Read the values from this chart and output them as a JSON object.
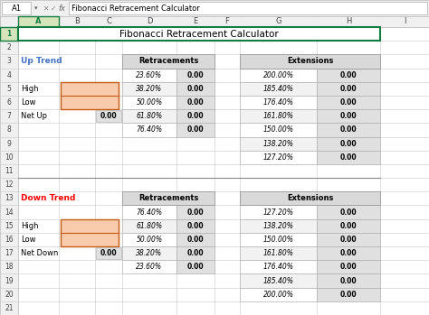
{
  "title": "Fibonacci Retracement Calculator",
  "formula_bar_text": "Fibonacci Retracement Calculator",
  "cell_ref": "A1",
  "up_trend_label": "Up Trend",
  "up_trend_label_color": "#4472C4",
  "down_trend_label": "Down Trend",
  "down_trend_label_color": "#FF0000",
  "high_label": "High",
  "low_label": "Low",
  "net_up_label": "Net Up",
  "net_down_label": "Net Down",
  "net_value": "0.00",
  "box_fill": "#F8CBAD",
  "box_edge": "#C55A11",
  "retracements_header": "Retracements",
  "extensions_header": "Extensions",
  "up_retracement_pcts": [
    "23.60%",
    "38.20%",
    "50.00%",
    "61.80%",
    "76.40%"
  ],
  "up_extension_pcts": [
    "200.00%",
    "185.40%",
    "176.40%",
    "161.80%",
    "150.00%",
    "138.20%",
    "127.20%"
  ],
  "down_retracement_pcts": [
    "76.40%",
    "61.80%",
    "50.00%",
    "38.20%",
    "23.60%"
  ],
  "down_extension_pcts": [
    "127.20%",
    "138.20%",
    "150.00%",
    "161.80%",
    "176.40%",
    "185.40%",
    "200.00%"
  ],
  "value_col": "0.00",
  "table_header_bg": "#D9D9D9",
  "table_alt_bg": "#F2F2F2",
  "table_white_bg": "#FFFFFF",
  "value_bg": "#E0E0E0",
  "col_letters": [
    "A",
    "B",
    "C",
    "D",
    "E",
    "F",
    "G",
    "H",
    "I"
  ],
  "top_bar_bg": "#F0F0F0",
  "sheet_bg": "#FFFFFF",
  "row_header_bg": "#F0F0F0",
  "selected_cell_border": "#107C41",
  "selected_col_bg": "#D6E4BC",
  "grid_color": "#C8C8C8",
  "border_color": "#A0A0A0",
  "formula_bar_bg": "#FFFFFF"
}
